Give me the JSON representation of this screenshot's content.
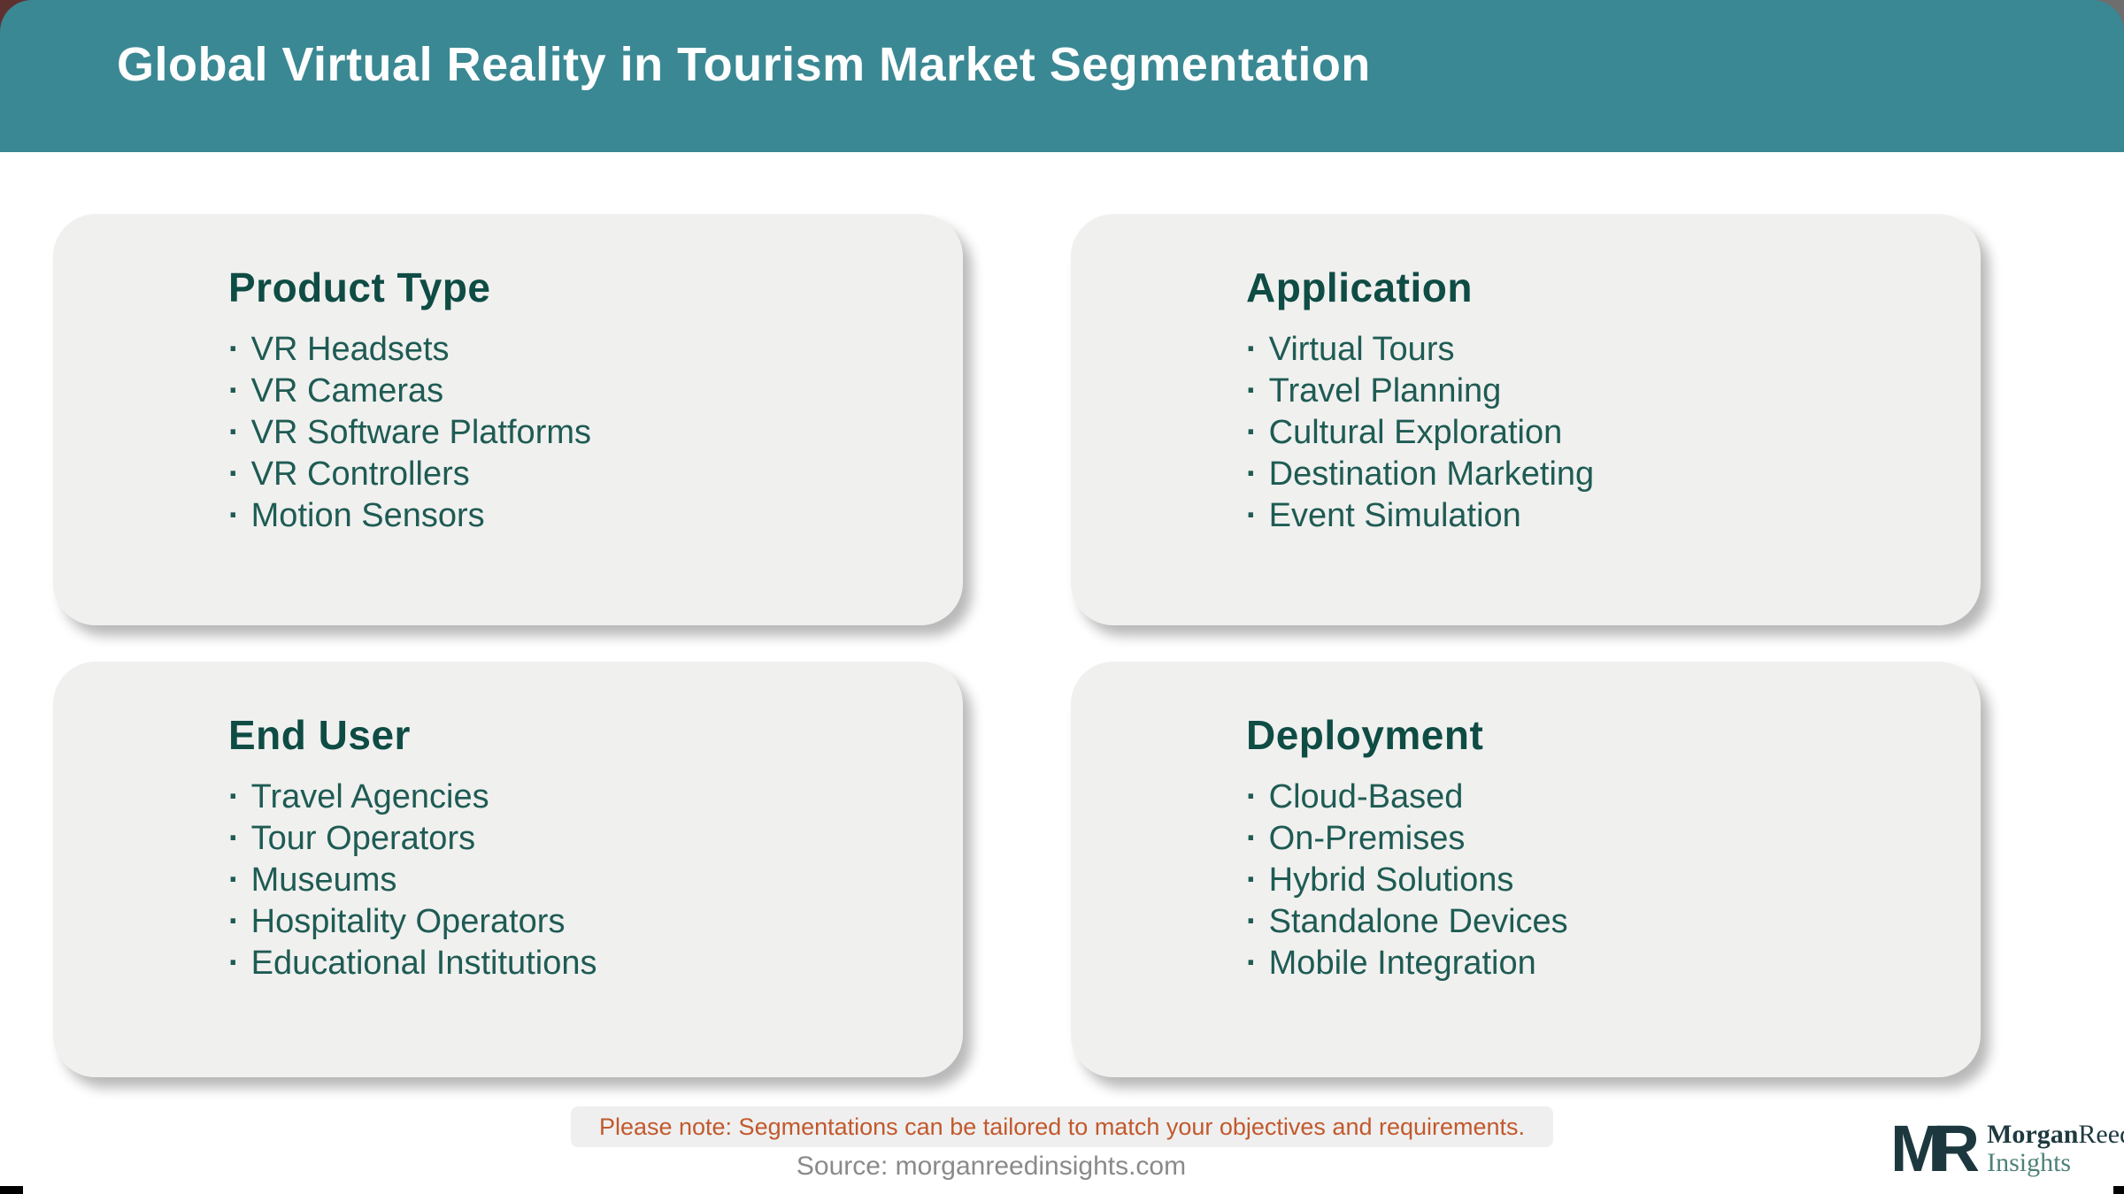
{
  "header": {
    "title": "Global Virtual Reality in Tourism Market Segmentation",
    "bg_color": "#3a8893"
  },
  "cards": [
    {
      "id": "product-type",
      "title": "Product Type",
      "items": [
        "VR Headsets",
        "VR Cameras",
        "VR Software Platforms",
        "VR Controllers",
        "Motion Sensors"
      ]
    },
    {
      "id": "application",
      "title": "Application",
      "items": [
        "Virtual Tours",
        "Travel Planning",
        "Cultural Exploration",
        "Destination Marketing",
        "Event Simulation"
      ]
    },
    {
      "id": "end-user",
      "title": "End User",
      "items": [
        "Travel Agencies",
        "Tour Operators",
        "Museums",
        "Hospitality Operators",
        "Educational Institutions"
      ]
    },
    {
      "id": "deployment",
      "title": "Deployment",
      "items": [
        "Cloud-Based",
        "On-Premises",
        "Hybrid Solutions",
        "Standalone Devices",
        "Mobile Integration"
      ]
    }
  ],
  "footer": {
    "note": "Please note: Segmentations can be tailored to match your objectives and requirements.",
    "source": "Source: morganreedinsights.com",
    "logo": {
      "monogram": "MR",
      "name_bold": "Morgan",
      "name_regular": "Reed",
      "subtitle": "Insights"
    }
  },
  "colors": {
    "header_bg": "#3a8893",
    "card_bg": "#f0f0ef",
    "card_title_text": "#0e4c44",
    "card_item_text": "#1e5b53",
    "note_text": "#c2592c",
    "note_bg": "#efefef",
    "source_text": "#8a8a8a",
    "logo_dark": "#1c383e",
    "logo_teal": "#4e8177"
  }
}
